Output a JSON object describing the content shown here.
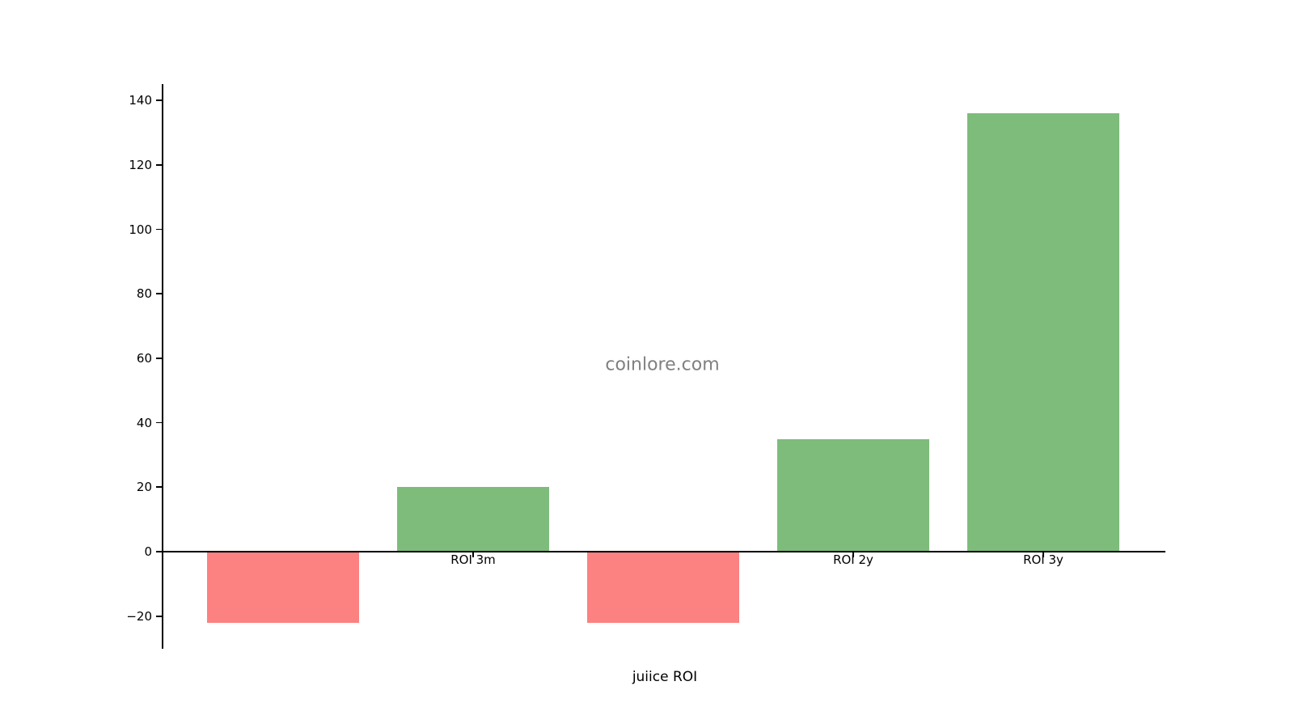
{
  "chart_data": {
    "type": "bar",
    "title": "",
    "xlabel": "juiice ROI",
    "ylabel": "",
    "watermark": "coinlore.com",
    "categories": [
      "",
      "ROI 3m",
      "",
      "ROI 2y",
      "ROI 3y"
    ],
    "values": [
      -22,
      20,
      -22,
      35,
      136
    ],
    "bar_colors": [
      "#fc8181",
      "#7ebc7b",
      "#fc8181",
      "#7ebc7b",
      "#7ebc7b"
    ],
    "positive_color": "#7ebc7b",
    "negative_color": "#fc8181",
    "y_ticks": [
      140,
      120,
      100,
      80,
      60,
      40,
      20,
      0,
      -20
    ],
    "ylim": [
      -30,
      145
    ],
    "grid": false,
    "legend": false,
    "colors": {
      "axis": "#000000",
      "tick_label": "#000000",
      "watermark": "#808080",
      "background": "#ffffff"
    }
  }
}
